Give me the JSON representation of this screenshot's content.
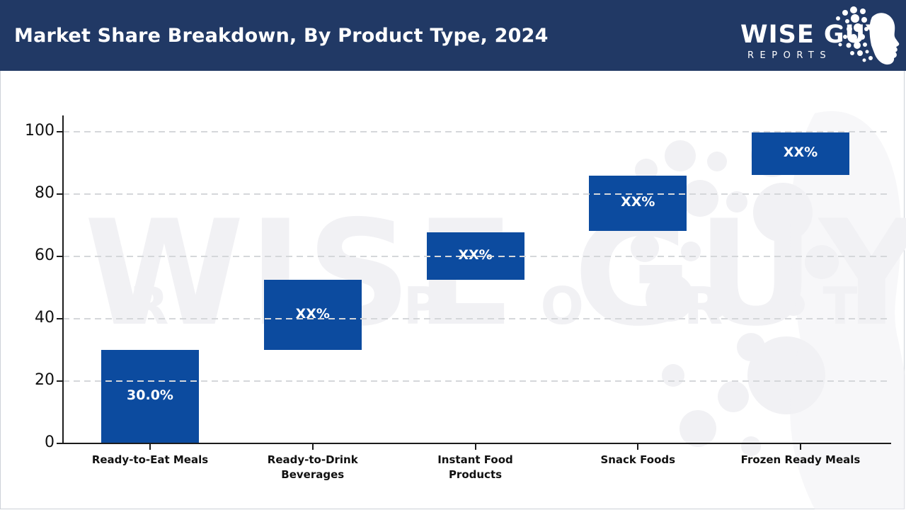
{
  "header": {
    "title": "Market Share Breakdown, By Product Type, 2024",
    "bg_color": "#213965",
    "logo": {
      "line1": "WISE GUY",
      "line2": "R E P O R T S"
    }
  },
  "watermark": {
    "line1": "WISE GUY",
    "line2": "R E P O R T S"
  },
  "chart_data": {
    "type": "bar",
    "subtype": "floating-segment-waterfall",
    "title": "Market Share Breakdown, By Product Type, 2024",
    "xlabel": "",
    "ylabel": "",
    "ylim": [
      0,
      105
    ],
    "yticks": [
      0,
      20,
      40,
      60,
      80,
      100
    ],
    "grid": "horizontal-dashed",
    "legend": "none",
    "bar_color": "#0c4b9f",
    "bar_label_color": "#ffffff",
    "categories": [
      "Ready-to-Eat Meals",
      "Ready-to-Drink Beverages",
      "Instant Food Products",
      "Snack Foods",
      "Frozen Ready Meals"
    ],
    "category_label_lines": [
      [
        "Ready-to-Eat Meals"
      ],
      [
        "Ready-to-Drink",
        "Beverages"
      ],
      [
        "Instant Food",
        "Products"
      ],
      [
        "Snack Foods"
      ],
      [
        "Frozen Ready Meals"
      ]
    ],
    "segments": [
      {
        "category": "Ready-to-Eat Meals",
        "start": 0,
        "end": 30,
        "label": "30.0%"
      },
      {
        "category": "Ready-to-Drink Beverages",
        "start": 30,
        "end": 52.4,
        "label": "XX%"
      },
      {
        "category": "Instant Food Products",
        "start": 52.4,
        "end": 67.8,
        "label": "XX%"
      },
      {
        "category": "Snack Foods",
        "start": 68.2,
        "end": 85.9,
        "label": "XX%"
      },
      {
        "category": "Frozen Ready Meals",
        "start": 86.2,
        "end": 99.8,
        "label": "XX%"
      }
    ]
  }
}
